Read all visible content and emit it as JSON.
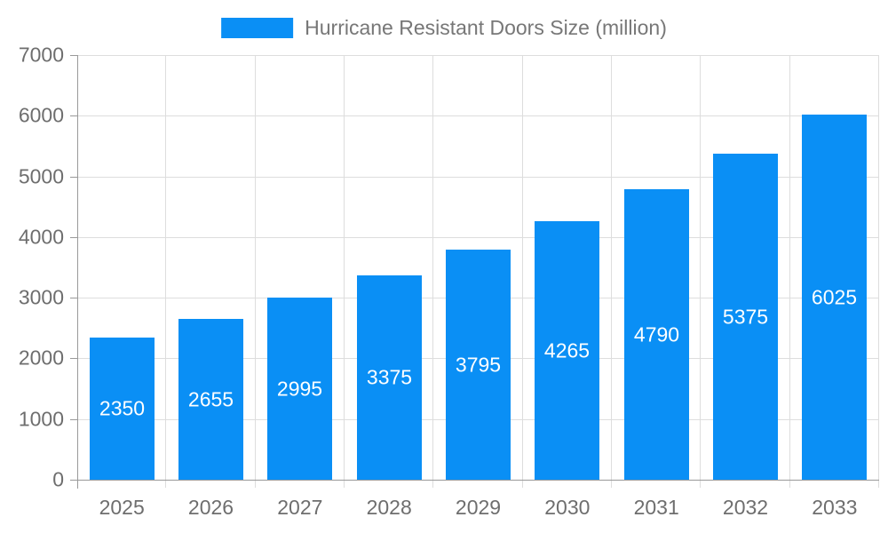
{
  "legend": {
    "label": "Hurricane Resistant Doors Size (million)"
  },
  "colors": {
    "bar": "#0a8ff5",
    "grid": "#dddddd",
    "axis": "#999999",
    "axis_label": "#6e6e6e",
    "legend_text": "#777777",
    "value_label": "#ffffff",
    "background": "#ffffff"
  },
  "chart_data": {
    "type": "bar",
    "title": "Hurricane Resistant Doors Size (million)",
    "categories": [
      "2025",
      "2026",
      "2027",
      "2028",
      "2029",
      "2030",
      "2031",
      "2032",
      "2033"
    ],
    "series": [
      {
        "name": "Hurricane Resistant Doors Size (million)",
        "values": [
          2350,
          2655,
          2995,
          3375,
          3795,
          4265,
          4790,
          5375,
          6025
        ]
      }
    ],
    "value_labels": [
      2350,
      2655,
      2995,
      3375,
      3795,
      4265,
      4790,
      5375,
      6025
    ],
    "xlabel": "",
    "ylabel": "",
    "ylim": [
      0,
      7000
    ],
    "ytick_step": 1000,
    "yticks": [
      0,
      1000,
      2000,
      3000,
      4000,
      5000,
      6000,
      7000
    ],
    "grid": true,
    "legend_position": "top-center",
    "value_label_style": "white-centered-inside-bar"
  }
}
